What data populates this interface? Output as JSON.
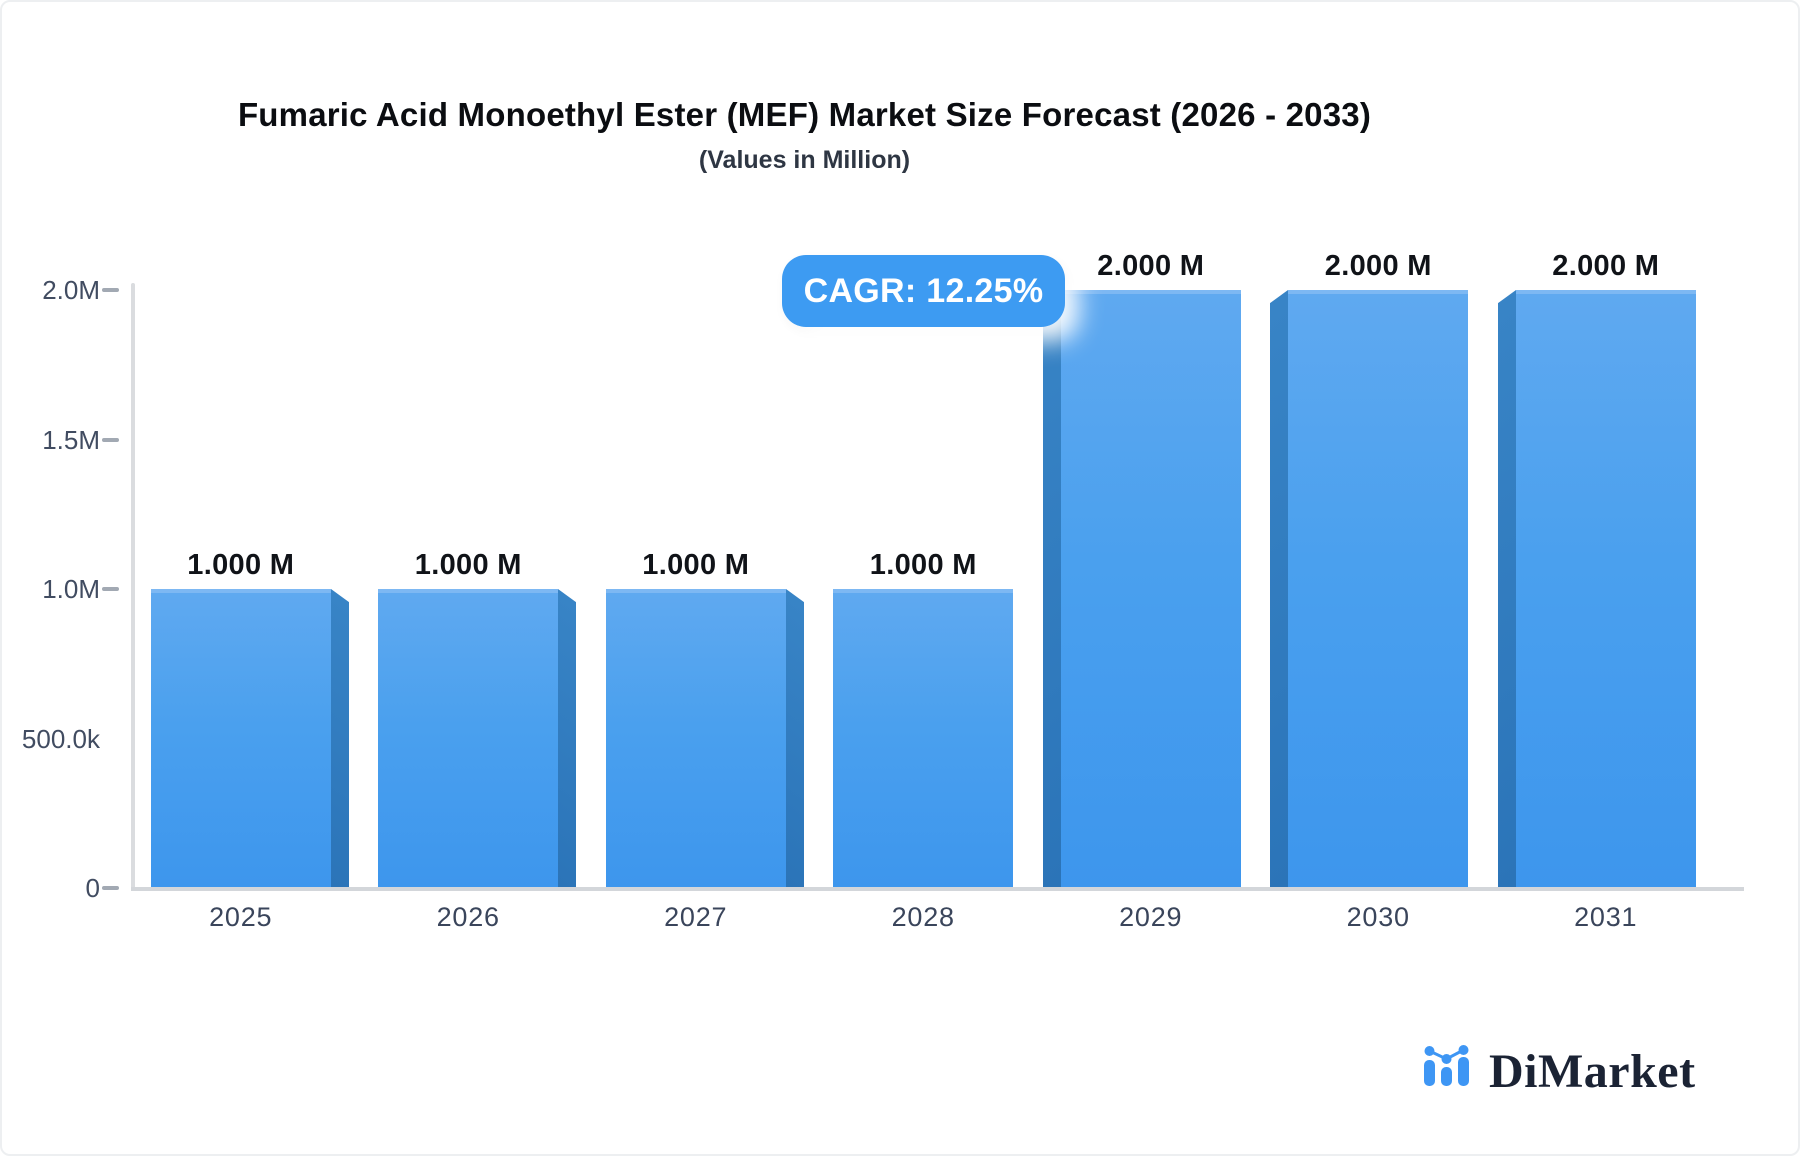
{
  "header": {
    "title": "Fumaric Acid Monoethyl Ester (MEF) Market Size Forecast (2026 - 2033)",
    "subtitle": "(Values in Million)"
  },
  "cagr_badge": {
    "label": "CAGR: 12.25%",
    "background_color": "#3d9bf2",
    "text_color": "#ffffff"
  },
  "chart_data": {
    "type": "bar",
    "title": "Fumaric Acid Monoethyl Ester (MEF) Market Size Forecast (2026 - 2033)",
    "subtitle": "(Values in Million)",
    "categories": [
      "2025",
      "2026",
      "2027",
      "2028",
      "2029",
      "2030",
      "2031"
    ],
    "values": [
      1000000,
      1000000,
      1000000,
      1000000,
      2000000,
      2000000,
      2000000
    ],
    "data_labels": [
      "1.000 M",
      "1.000 M",
      "1.000 M",
      "1.000 M",
      "2.000 M",
      "2.000 M",
      "2.000 M"
    ],
    "xlabel": "",
    "ylabel": "",
    "ylim": [
      0,
      2000000
    ],
    "y_ticks": [
      {
        "label": "2.0M",
        "value": 2000000,
        "dash": true
      },
      {
        "label": "1.5M",
        "value": 1500000,
        "dash": true
      },
      {
        "label": "1.0M",
        "value": 1000000,
        "dash": true
      },
      {
        "label": "500.0k",
        "value": 500000,
        "dash": false
      },
      {
        "label": "0",
        "value": 0,
        "dash": true
      }
    ],
    "grid": false,
    "legend": false,
    "bar_color_top": "#5fa9f0",
    "bar_color_bottom": "#3d96ed",
    "bar_top_edge_color": "#7db8f3",
    "bar_side_face_color": "#2e7dc1",
    "axis_line_color": "#d6d8db"
  },
  "branding": {
    "logo_text": "DiMarket",
    "logo_icon": "bar-chart-trend-icon",
    "logo_icon_color": "#3e96f4",
    "logo_text_color": "#1b2334"
  }
}
